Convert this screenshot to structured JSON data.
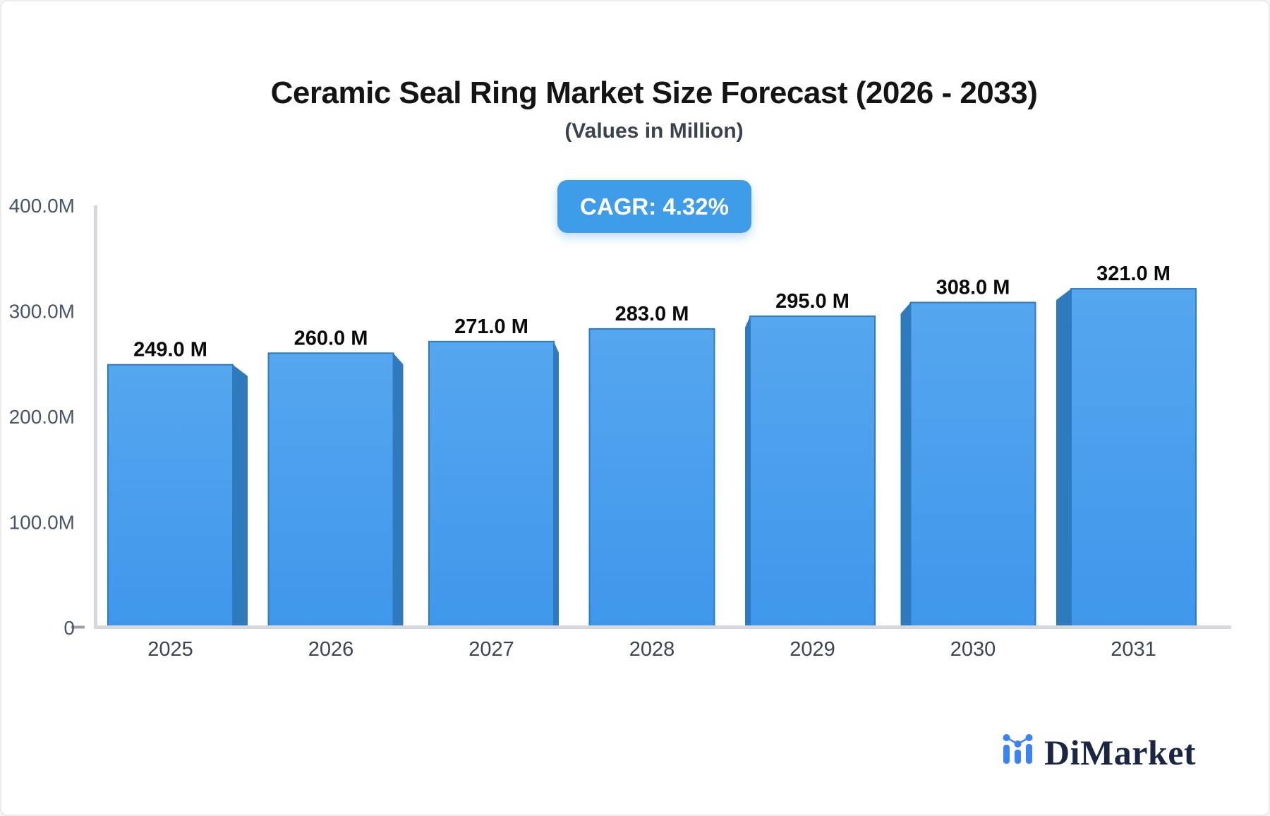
{
  "chart_data": {
    "type": "bar",
    "title": "Ceramic Seal Ring Market Size Forecast (2026 - 2033)",
    "subtitle": "(Values in Million)",
    "categories": [
      "2025",
      "2026",
      "2027",
      "2028",
      "2029",
      "2030",
      "2031"
    ],
    "values": [
      249,
      260,
      271,
      283,
      295,
      308,
      321
    ],
    "value_labels": [
      "249.0 M",
      "260.0 M",
      "271.0 M",
      "283.0 M",
      "295.0 M",
      "308.0 M",
      "321.0 M"
    ],
    "unit": "Million",
    "ylim": [
      0,
      400
    ],
    "y_tick_values": [
      400,
      300,
      200,
      100,
      0
    ],
    "y_tick_labels": [
      "400.0M",
      "300.0M",
      "200.0M",
      "100.0M",
      "0"
    ],
    "grid": false,
    "legend": "none",
    "annotation": "CAGR: 4.32%"
  },
  "badge": {
    "label": "CAGR: 4.32%"
  },
  "brand": {
    "name": "DiMarket"
  },
  "colors": {
    "badge_bg": "#3f9ce9",
    "bar_face_top": "#55a6ee",
    "bar_face_bottom": "#3f97ec",
    "bar_side": "#2f7abd",
    "bar_edge": "#2d7bc1",
    "axis_line": "#d5d8dd",
    "zero_tick": "#9aa1aa",
    "brand_blue": "#3b82f6",
    "brand_navy": "#1b2742"
  }
}
